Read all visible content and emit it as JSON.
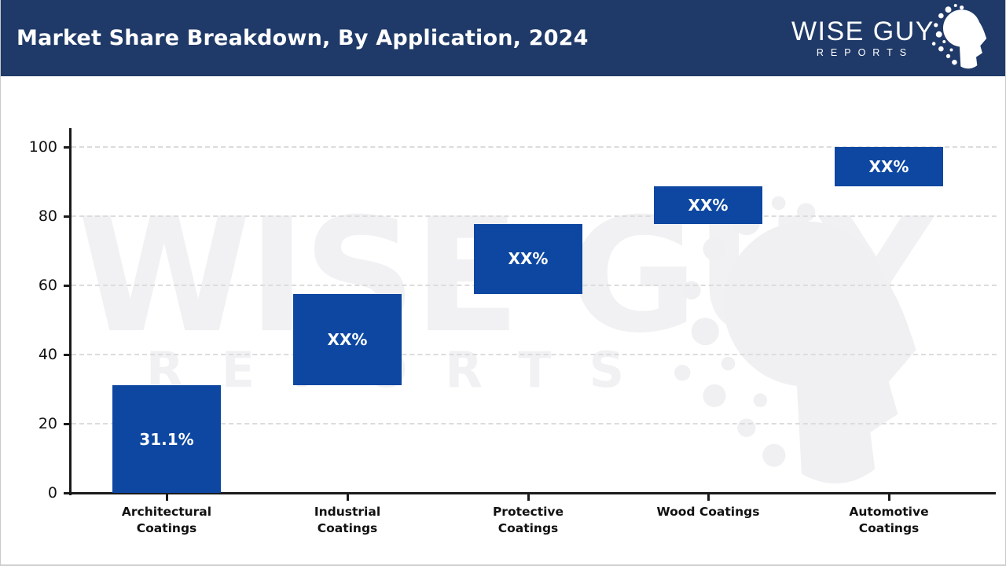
{
  "header": {
    "title": "Market Share Breakdown, By Application, 2024",
    "logo": {
      "brand_line1": "WISE GUY",
      "brand_line2": "REPORTS",
      "head_icon": "dotted-face-profile"
    }
  },
  "watermark": {
    "line1": "WISE GUY",
    "line2": "REPORTS",
    "head_icon": "dotted-face-profile"
  },
  "chart_data": {
    "type": "bar",
    "variant": "waterfall",
    "title": "Market Share Breakdown, By Application, 2024",
    "categories": [
      "Architectural Coatings",
      "Industrial Coatings",
      "Protective Coatings",
      "Wood Coatings",
      "Automotive Coatings"
    ],
    "category_lines": [
      [
        "Architectural",
        "Coatings"
      ],
      [
        "Industrial",
        "Coatings"
      ],
      [
        "Protective",
        "Coatings"
      ],
      [
        "Wood Coatings"
      ],
      [
        "Automotive",
        "Coatings"
      ]
    ],
    "series": [
      {
        "name": "Market Share (%)",
        "segments": [
          {
            "category": "Architectural Coatings",
            "start": 0,
            "end": 31.1,
            "value": 31.1,
            "label": "31.1%"
          },
          {
            "category": "Industrial Coatings",
            "start": 31.1,
            "end": 57.5,
            "value": 26.4,
            "label": "XX%"
          },
          {
            "category": "Protective Coatings",
            "start": 57.5,
            "end": 77.8,
            "value": 20.3,
            "label": "XX%"
          },
          {
            "category": "Wood Coatings",
            "start": 77.8,
            "end": 88.7,
            "value": 10.9,
            "label": "XX%"
          },
          {
            "category": "Automotive Coatings",
            "start": 88.7,
            "end": 100,
            "value": 11.3,
            "label": "XX%"
          }
        ]
      }
    ],
    "xlabel": "",
    "ylabel": "",
    "ylim": [
      0,
      100
    ],
    "yticks": [
      0,
      20,
      40,
      60,
      80,
      100
    ],
    "grid": "horizontal-dashed",
    "legend": "none",
    "colors": {
      "bar": "#0d47a1",
      "bar_label": "#ffffff",
      "axis": "#1a1a1a",
      "grid": "#dcdcdc",
      "header_bg": "#1f3a68",
      "watermark": "#f1f1f4",
      "tick_label": "#111111"
    }
  }
}
